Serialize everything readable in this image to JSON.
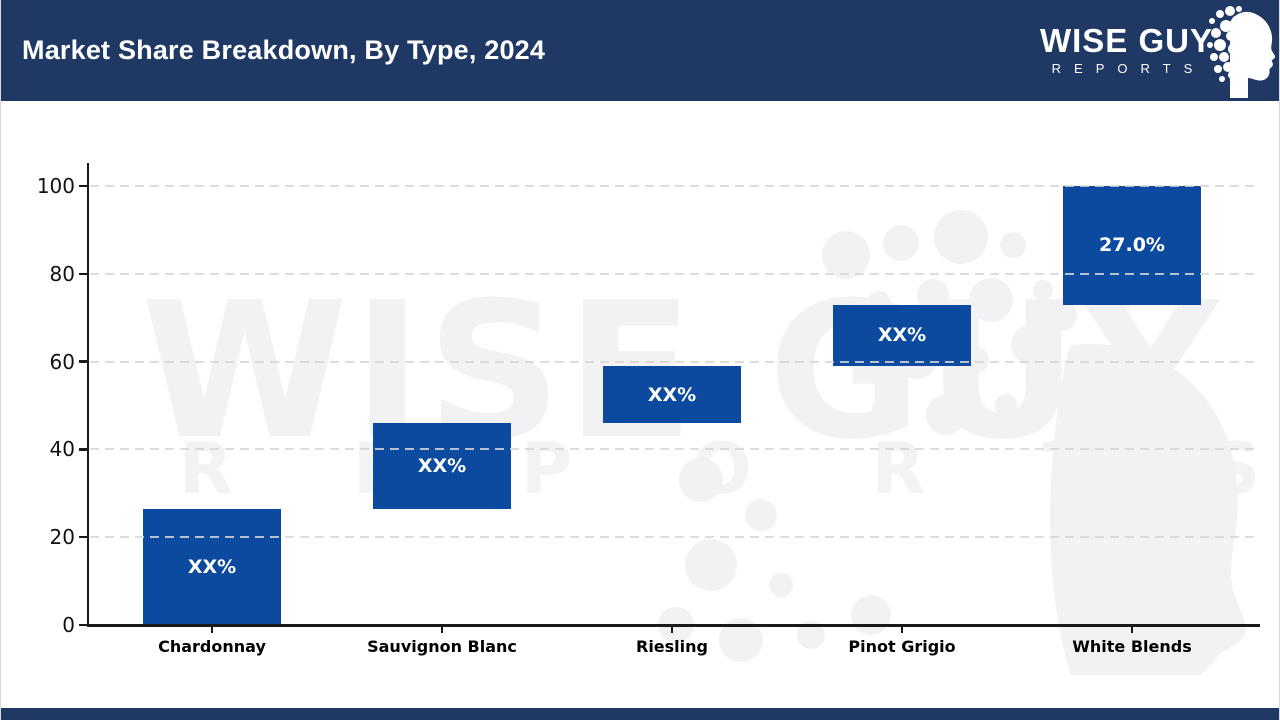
{
  "header": {
    "title": "Market Share Breakdown, By Type, 2024",
    "bg_color": "#1f3864",
    "logo_line1": "WISE GUY",
    "logo_line2": "REPORTS"
  },
  "watermark": {
    "line1": "WISE GUY",
    "line2": "REPORTS"
  },
  "footer": {
    "bg_color": "#1f3864"
  },
  "chart_data": {
    "type": "bar",
    "subtype": "waterfall",
    "title": "Market Share Breakdown, By Type, 2024",
    "categories": [
      "Chardonnay",
      "Sauvignon Blanc",
      "Riesling",
      "Pinot Grigio",
      "White Blends"
    ],
    "segments": [
      {
        "category": "Chardonnay",
        "start": 0,
        "end": 26.5,
        "label": "XX%"
      },
      {
        "category": "Sauvignon Blanc",
        "start": 26.5,
        "end": 46,
        "label": "XX%"
      },
      {
        "category": "Riesling",
        "start": 46,
        "end": 59,
        "label": "XX%"
      },
      {
        "category": "Pinot Grigio",
        "start": 59,
        "end": 73,
        "label": "XX%"
      },
      {
        "category": "White Blends",
        "start": 73,
        "end": 100,
        "label": "27.0%"
      }
    ],
    "ylim": [
      0,
      100
    ],
    "yticks": [
      0,
      20,
      40,
      60,
      80,
      100
    ],
    "grid": "horizontal-dashed",
    "legend": "none",
    "bar_color": "#0b4a9e",
    "bar_label_color": "#ffffff",
    "axis_color": "#1a1a1a"
  }
}
